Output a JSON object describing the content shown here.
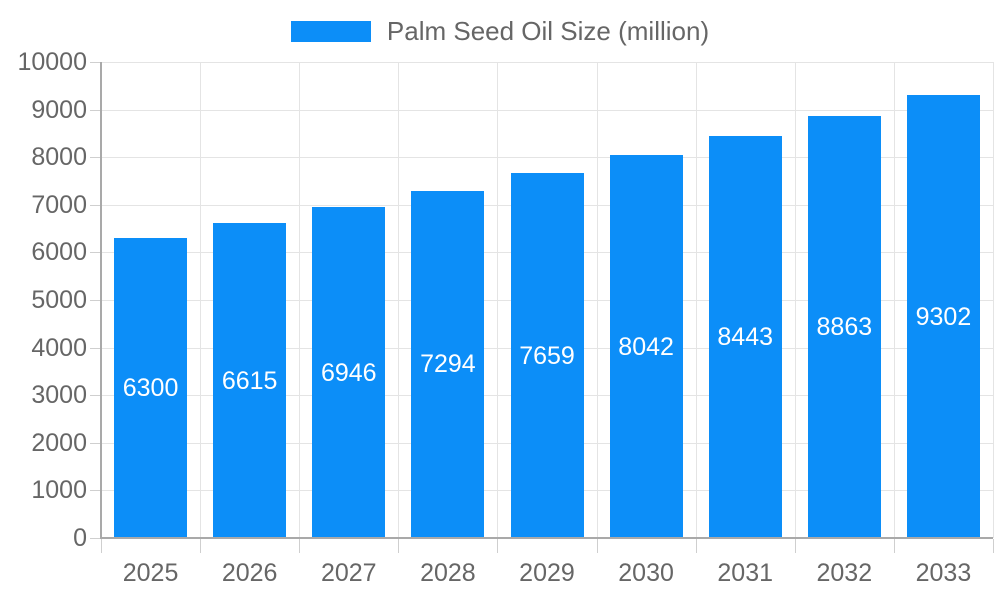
{
  "colors": {
    "bar": "#0c8ef8",
    "bar_label": "#ffffff",
    "axis_text": "#666666",
    "grid": "#e4e4e4",
    "axis_line": "#a9a9a9",
    "tick": "#cfcfcf",
    "background": "#ffffff"
  },
  "legend": {
    "label": "Palm Seed Oil Size (million)"
  },
  "chart_data": {
    "type": "bar",
    "title": "",
    "xlabel": "",
    "ylabel": "",
    "categories": [
      "2025",
      "2026",
      "2027",
      "2028",
      "2029",
      "2030",
      "2031",
      "2032",
      "2033"
    ],
    "series": [
      {
        "name": "Palm Seed Oil Size (million)",
        "values": [
          6300,
          6615,
          6946,
          7294,
          7659,
          8042,
          8443,
          8863,
          9302
        ]
      }
    ],
    "ylim": [
      0,
      10000
    ],
    "ytick_step": 1000,
    "grid": true,
    "legend_position": "top",
    "value_labels": "inside-center"
  }
}
